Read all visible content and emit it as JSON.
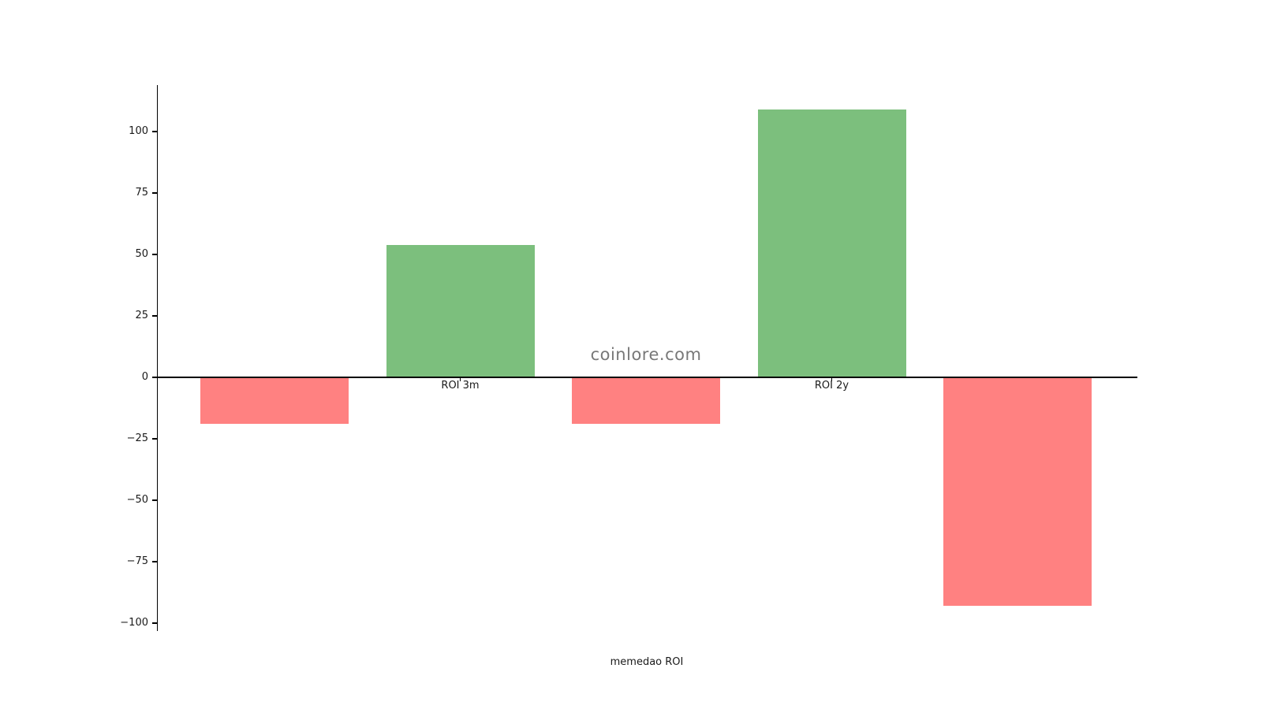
{
  "watermark": {
    "text": "coinlore.com",
    "color": "#787878"
  },
  "chart_data": {
    "type": "bar",
    "title": "",
    "xlabel": "memedao ROI",
    "ylabel": "",
    "categories": [
      "",
      "ROI 3m",
      "",
      "ROI 2y",
      ""
    ],
    "values": [
      -19,
      54,
      -19,
      109,
      -93
    ],
    "visible_xticks": [
      {
        "slot": 1,
        "label": "ROI 3m"
      },
      {
        "slot": 3,
        "label": "ROI 2y"
      }
    ],
    "yticks": [
      100,
      75,
      50,
      25,
      0,
      -25,
      -50,
      -75,
      -100
    ],
    "ylim": [
      -103,
      119
    ],
    "grid": false,
    "legend": null,
    "colors": {
      "positive": "#7cbf7d",
      "negative": "#ff8181",
      "axis": "#000000",
      "tick_label": "#1a1a1a"
    }
  }
}
